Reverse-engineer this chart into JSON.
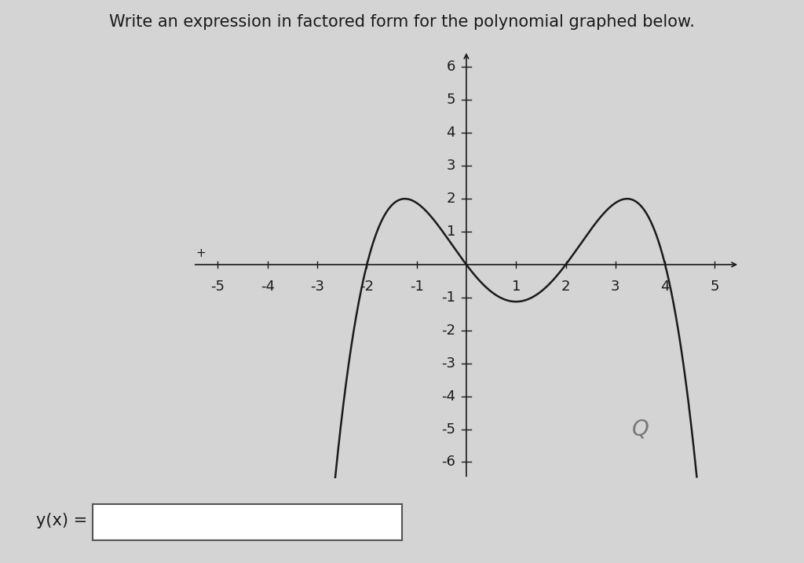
{
  "title": "Write an expression in factored form for the polynomial graphed below.",
  "title_fontsize": 15,
  "title_color": "#1a1a1a",
  "background_color": "#d4d4d4",
  "plot_bg_color": "#d4d4d4",
  "xlim": [
    -5.5,
    5.5
  ],
  "ylim": [
    -6.5,
    6.5
  ],
  "xticks": [
    -5,
    -4,
    -3,
    -2,
    -1,
    1,
    2,
    3,
    4,
    5
  ],
  "yticks": [
    -6,
    -5,
    -4,
    -3,
    -2,
    -1,
    1,
    2,
    3,
    4,
    5,
    6
  ],
  "roots": [
    -2,
    0,
    2,
    4
  ],
  "leading_coef": -0.125,
  "curve_color": "#1a1a1a",
  "curve_linewidth": 1.8,
  "axis_color": "#1a1a1a",
  "tick_fontsize": 13,
  "ylabel_box_label": "y(x) =",
  "ylabel_box_fontsize": 15,
  "mag_glass_x": 3.5,
  "mag_glass_y": -5.0,
  "mag_glass_fontsize": 20
}
